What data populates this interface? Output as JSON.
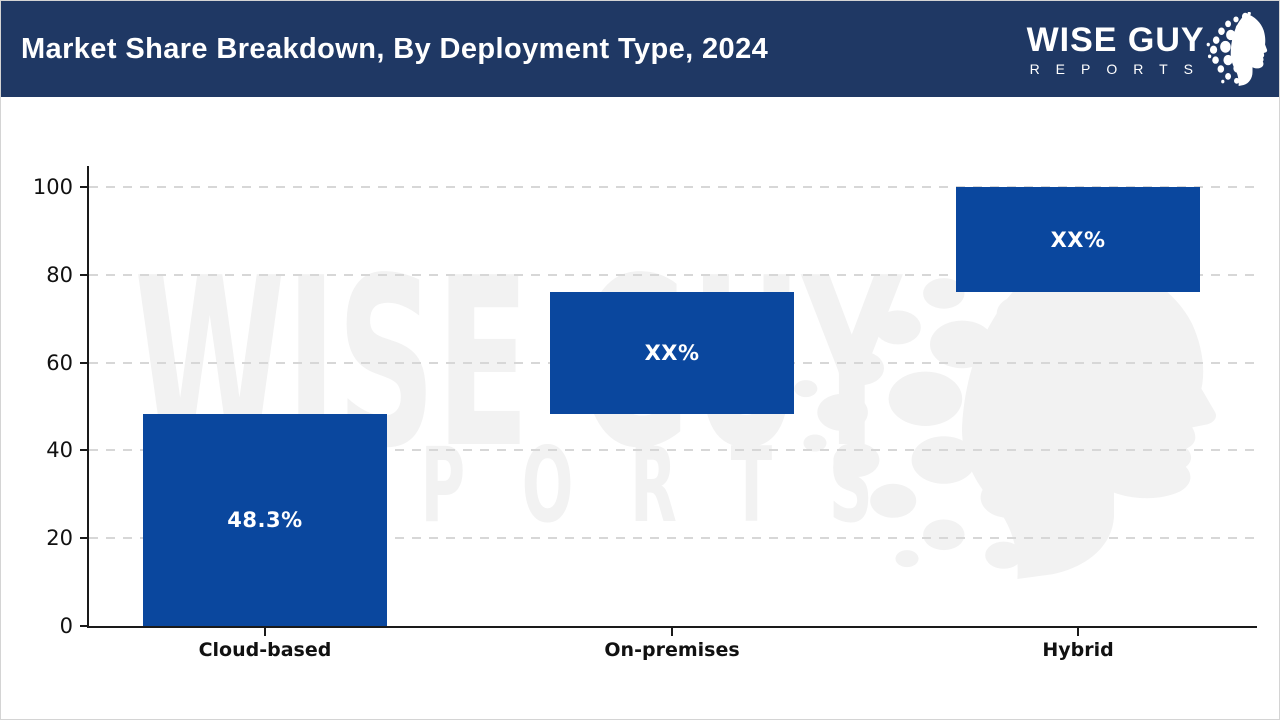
{
  "page": {
    "background": "#ffffff",
    "border_color": "#d4d4d4"
  },
  "header": {
    "background": "#1f3864",
    "title": "Market Share Breakdown, By Deployment Type, 2024",
    "logo": {
      "line1": "WISE GUY",
      "line2": "REPORTS"
    }
  },
  "watermark": {
    "line1": "WISE GUY",
    "line2": "REPORTS"
  },
  "chart_data": {
    "type": "bar",
    "subtype": "waterfall",
    "title": "Market Share Breakdown, By Deployment Type, 2024",
    "categories": [
      "Cloud-based",
      "On-premises",
      "Hybrid"
    ],
    "bars": [
      {
        "category": "Cloud-based",
        "start": 0,
        "end": 48.3,
        "label": "48.3%"
      },
      {
        "category": "On-premises",
        "start": 48.3,
        "end": 76.0,
        "label": "XX%"
      },
      {
        "category": "Hybrid",
        "start": 76.0,
        "end": 100.0,
        "label": "XX%"
      }
    ],
    "xlabel": "",
    "ylabel": "",
    "yticks": [
      0,
      20,
      40,
      60,
      80,
      100
    ],
    "ylim": [
      0,
      104.8
    ],
    "bar_color": "#0a479e",
    "grid": {
      "horizontal": true,
      "style": "dashed",
      "color": "#d7d7d7"
    },
    "legend": "none"
  }
}
